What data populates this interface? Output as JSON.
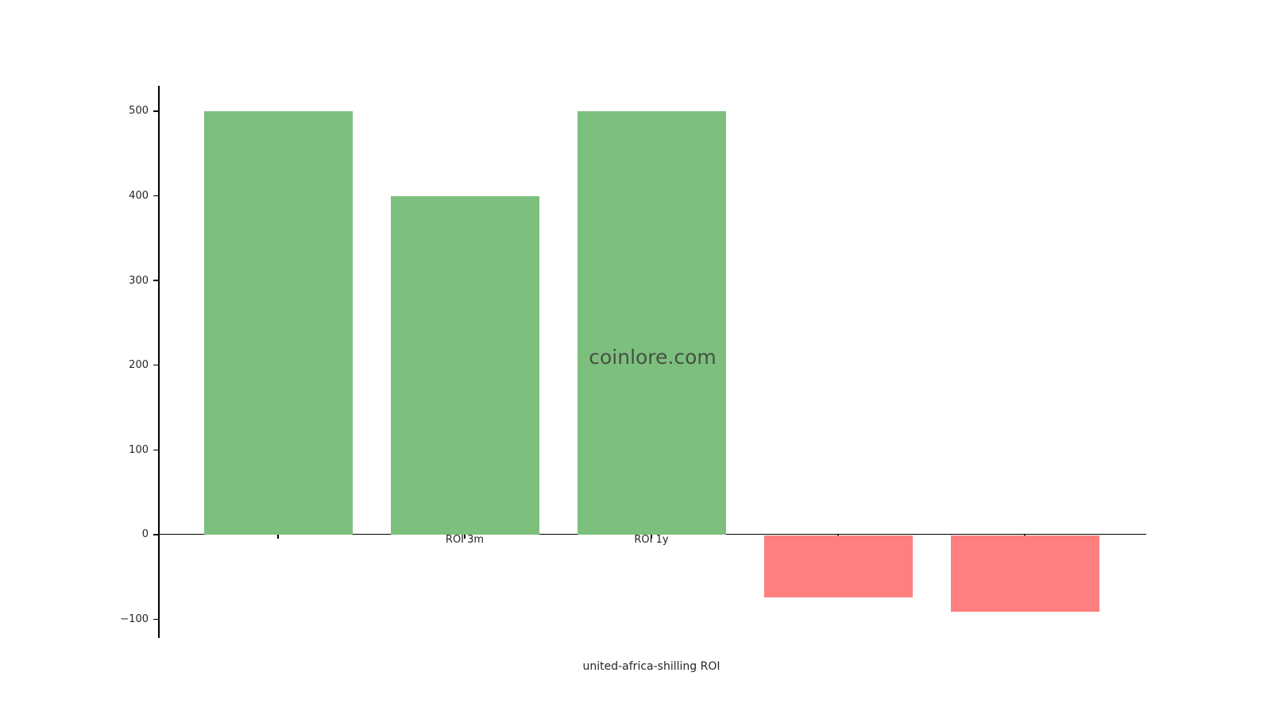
{
  "chart_data": {
    "type": "bar",
    "title": "united-africa-shilling ROI",
    "categories": [
      "",
      "ROI 3m",
      "ROI 1y",
      "",
      ""
    ],
    "values": [
      500,
      400,
      500,
      -73,
      -90
    ],
    "yticks": [
      500,
      400,
      300,
      200,
      100,
      0,
      -100
    ],
    "ytick_labels": [
      "500",
      "400",
      "300",
      "200",
      "100",
      "0",
      "−100"
    ],
    "ylim": [
      -122,
      530
    ],
    "xlabel": "",
    "ylabel": "",
    "grid": false,
    "legend": false,
    "colors": {
      "positive_bar": "#7dbf7d",
      "negative_bar": "#fd7f7f",
      "axis": "#000000",
      "tick_text": "#262626"
    }
  },
  "watermark": {
    "text": "coinlore.com",
    "color": "#3d3d3d"
  }
}
